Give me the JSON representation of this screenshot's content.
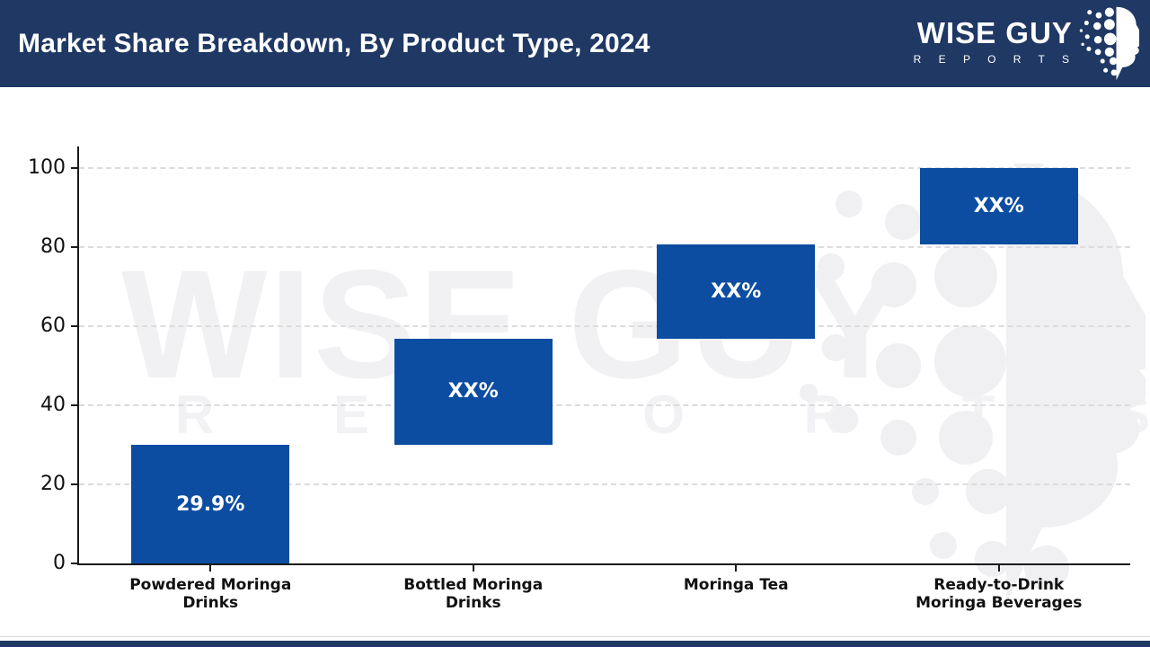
{
  "header": {
    "title": "Market Share Breakdown, By Product Type, 2024",
    "logo_brand": "WISE GUY",
    "logo_sub": "R E P O R T S"
  },
  "watermark": {
    "brand": "WISE GUY",
    "sub": "R E P O R T S"
  },
  "colors": {
    "header_bg": "#1f3864",
    "bar_fill": "#0c4da2",
    "grid": "#dcdcdc",
    "axis": "#1a1a1a",
    "value_label": "#ffffff",
    "watermark": "#f1f1f4"
  },
  "chart_data": {
    "type": "bar",
    "subtype": "waterfall",
    "title": "Market Share Breakdown, By Product Type, 2024",
    "categories": [
      "Powdered Moringa\nDrinks",
      "Bottled Moringa\nDrinks",
      "Moringa Tea",
      "Ready-to-Drink\nMoringa Beverages"
    ],
    "bars": [
      {
        "category": "Powdered Moringa\nDrinks",
        "start": 0,
        "end": 29.9,
        "label": "29.9%"
      },
      {
        "category": "Bottled Moringa\nDrinks",
        "start": 30,
        "end": 56.9,
        "label": "XX%"
      },
      {
        "category": "Moringa Tea",
        "start": 56.9,
        "end": 80.6,
        "label": "XX%"
      },
      {
        "category": "Ready-to-Drink\nMoringa Beverages",
        "start": 80.7,
        "end": 100,
        "label": "XX%"
      }
    ],
    "ylim": [
      0,
      100
    ],
    "yticks": [
      0,
      20,
      40,
      60,
      80,
      100
    ],
    "xlabel": "",
    "ylabel": "",
    "grid": "horizontal-dashed",
    "legend": "none"
  }
}
